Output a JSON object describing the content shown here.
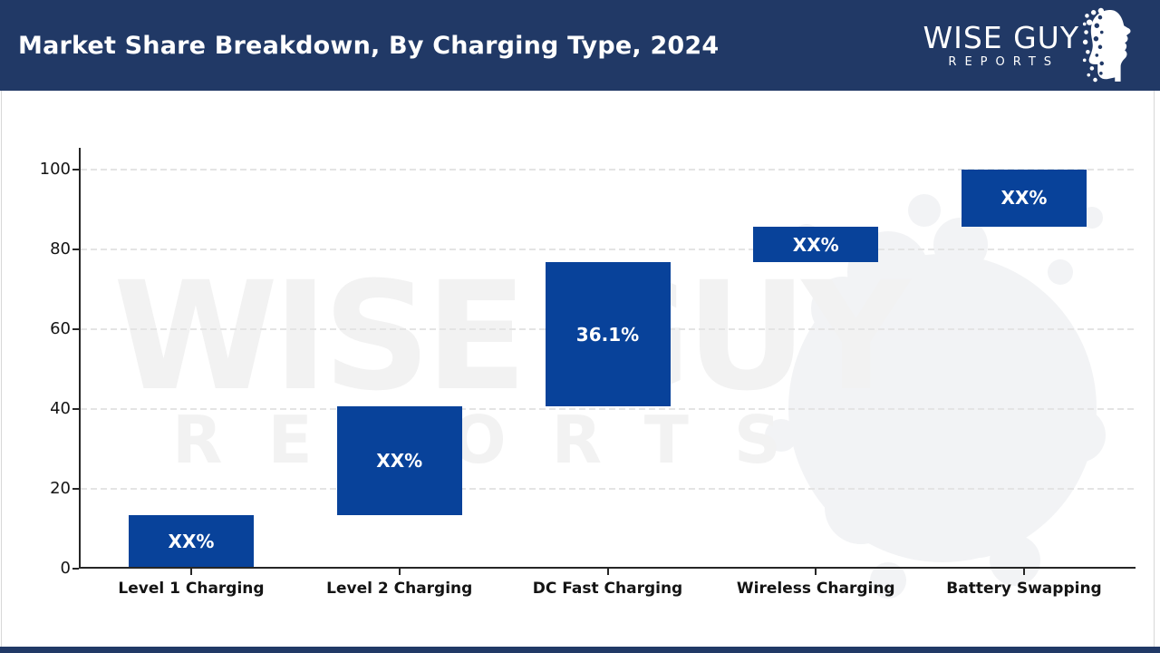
{
  "header": {
    "title": "Market Share Breakdown, By Charging Type, 2024",
    "logo": {
      "line1": "WISE GUY",
      "line2": "REPORTS"
    }
  },
  "watermark": {
    "line1": "WISE GUY",
    "line2": "REPORTS"
  },
  "colors": {
    "header_bg": "#213966",
    "footer_bg": "#213966",
    "bar": "#08429a",
    "bar_label": "#ffffff",
    "grid": "#e4e4e4",
    "axis": "#262626",
    "tick_label": "#141414",
    "title_text": "#ffffff",
    "watermark_fill": "#f2f3f5"
  },
  "chart_data": {
    "type": "bar",
    "subtype": "waterfall-breakdown",
    "title": "Market Share Breakdown, By Charging Type, 2024",
    "categories": [
      "Level 1 Charging",
      "Level 2 Charging",
      "DC Fast Charging",
      "Wireless Charging",
      "Battery Swapping"
    ],
    "segments": [
      {
        "category": "Level 1 Charging",
        "start": 0,
        "end": 13.2,
        "value_label": "XX%"
      },
      {
        "category": "Level 2 Charging",
        "start": 13.2,
        "end": 40.5,
        "value_label": "XX%"
      },
      {
        "category": "DC Fast Charging",
        "start": 40.5,
        "end": 76.6,
        "value_label": "36.1%",
        "value": 36.1
      },
      {
        "category": "Wireless Charging",
        "start": 76.6,
        "end": 85.5,
        "value_label": "XX%"
      },
      {
        "category": "Battery Swapping",
        "start": 85.5,
        "end": 100,
        "value_label": "XX%"
      }
    ],
    "yticks": [
      0,
      20,
      40,
      60,
      80,
      100
    ],
    "ylim": [
      0,
      105
    ],
    "xlabel": "",
    "ylabel": "",
    "grid": "horizontal-dashed",
    "legend": "none"
  }
}
